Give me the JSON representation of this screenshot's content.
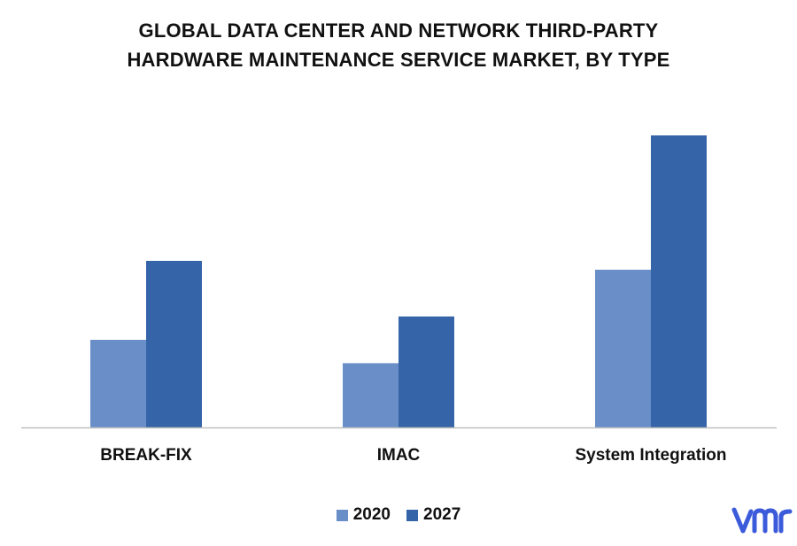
{
  "title_lines": [
    "GLOBAL DATA CENTER AND NETWORK THIRD-PARTY",
    "HARDWARE MAINTENANCE SERVICE MARKET, BY TYPE"
  ],
  "chart_data": {
    "type": "bar",
    "title": "GLOBAL DATA CENTER AND NETWORK THIRD-PARTY HARDWARE MAINTENANCE SERVICE MARKET, BY TYPE",
    "categories": [
      "BREAK-FIX",
      "IMAC",
      "System Integration"
    ],
    "series": [
      {
        "name": "2020",
        "color": "#6a8fc8",
        "values": [
          30,
          22,
          54
        ]
      },
      {
        "name": "2027",
        "color": "#3565a8",
        "values": [
          57,
          38,
          100
        ]
      }
    ],
    "ylim": [
      0,
      100
    ],
    "grid": false,
    "legend": "bottom-center",
    "axis_color": "#bfbfbf"
  },
  "brand": {
    "logo_icon": "vmr-logo-icon",
    "color": "#3b5bdb"
  }
}
